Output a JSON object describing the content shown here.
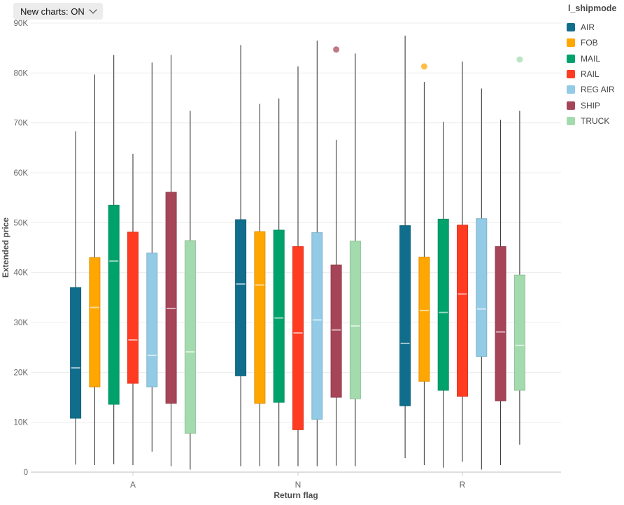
{
  "controls": {
    "new_charts_label": "New charts: ON"
  },
  "legend": {
    "title": "l_shipmode",
    "items": [
      {
        "label": "AIR",
        "color": "#116d8c"
      },
      {
        "label": "FOB",
        "color": "#ffa600"
      },
      {
        "label": "MAIL",
        "color": "#00a26b"
      },
      {
        "label": "RAIL",
        "color": "#ff3b22"
      },
      {
        "label": "REG AIR",
        "color": "#93cbe6"
      },
      {
        "label": "SHIP",
        "color": "#a64458"
      },
      {
        "label": "TRUCK",
        "color": "#a4dbae"
      }
    ]
  },
  "chart_data": {
    "type": "boxplot",
    "title": "",
    "xlabel": "Return flag",
    "ylabel": "Extended price",
    "value_unit": "K (thousands)",
    "categories": [
      "A",
      "N",
      "R"
    ],
    "yticks": [
      "0",
      "10K",
      "20K",
      "30K",
      "40K",
      "50K",
      "60K",
      "70K",
      "80K",
      "90K"
    ],
    "ylim": [
      0,
      90
    ],
    "grid": "horizontal",
    "legend_position": "top-right",
    "series": [
      {
        "name": "AIR",
        "color": "#116d8c",
        "boxes": {
          "A": {
            "low": 1.5,
            "q1": 10.8,
            "median": 20.9,
            "q3": 37.0,
            "high": 68.3
          },
          "N": {
            "low": 1.2,
            "q1": 19.3,
            "median": 37.7,
            "q3": 50.6,
            "high": 85.6
          },
          "R": {
            "low": 2.8,
            "q1": 13.3,
            "median": 25.8,
            "q3": 49.4,
            "high": 87.5
          }
        },
        "outliers": []
      },
      {
        "name": "FOB",
        "color": "#ffa600",
        "boxes": {
          "A": {
            "low": 1.4,
            "q1": 17.1,
            "median": 33.0,
            "q3": 43.0,
            "high": 79.7
          },
          "N": {
            "low": 1.2,
            "q1": 13.8,
            "median": 37.5,
            "q3": 48.2,
            "high": 73.8
          },
          "R": {
            "low": 1.4,
            "q1": 18.2,
            "median": 32.4,
            "q3": 43.1,
            "high": 78.2
          }
        },
        "outliers": [
          {
            "category": "R",
            "value": 81.3
          }
        ]
      },
      {
        "name": "MAIL",
        "color": "#00a26b",
        "boxes": {
          "A": {
            "low": 1.6,
            "q1": 13.6,
            "median": 42.3,
            "q3": 53.5,
            "high": 83.6
          },
          "N": {
            "low": 1.2,
            "q1": 14.0,
            "median": 30.9,
            "q3": 48.5,
            "high": 74.9
          },
          "R": {
            "low": 0.9,
            "q1": 16.4,
            "median": 32.0,
            "q3": 50.7,
            "high": 70.2
          }
        },
        "outliers": []
      },
      {
        "name": "RAIL",
        "color": "#ff3b22",
        "boxes": {
          "A": {
            "low": 1.4,
            "q1": 17.8,
            "median": 26.5,
            "q3": 48.1,
            "high": 63.8
          },
          "N": {
            "low": 1.2,
            "q1": 8.5,
            "median": 27.9,
            "q3": 45.2,
            "high": 81.3
          },
          "R": {
            "low": 2.1,
            "q1": 15.2,
            "median": 35.7,
            "q3": 49.5,
            "high": 82.3
          }
        },
        "outliers": []
      },
      {
        "name": "REG AIR",
        "color": "#93cbe6",
        "boxes": {
          "A": {
            "low": 4.1,
            "q1": 17.1,
            "median": 23.4,
            "q3": 43.9,
            "high": 82.1
          },
          "N": {
            "low": 1.2,
            "q1": 10.6,
            "median": 30.5,
            "q3": 48.0,
            "high": 86.5
          },
          "R": {
            "low": 0.5,
            "q1": 23.2,
            "median": 32.7,
            "q3": 50.8,
            "high": 76.9
          }
        },
        "outliers": []
      },
      {
        "name": "SHIP",
        "color": "#a64458",
        "boxes": {
          "A": {
            "low": 1.2,
            "q1": 13.8,
            "median": 32.8,
            "q3": 56.1,
            "high": 83.6
          },
          "N": {
            "low": 1.3,
            "q1": 15.0,
            "median": 28.5,
            "q3": 41.5,
            "high": 66.6
          },
          "R": {
            "low": 1.4,
            "q1": 14.3,
            "median": 28.1,
            "q3": 45.2,
            "high": 70.6
          }
        },
        "outliers": [
          {
            "category": "N",
            "value": 84.7
          }
        ]
      },
      {
        "name": "TRUCK",
        "color": "#a4dbae",
        "boxes": {
          "A": {
            "low": 0.5,
            "q1": 7.8,
            "median": 24.1,
            "q3": 46.4,
            "high": 72.4
          },
          "N": {
            "low": 1.2,
            "q1": 14.7,
            "median": 29.3,
            "q3": 46.3,
            "high": 83.9
          },
          "R": {
            "low": 5.5,
            "q1": 16.4,
            "median": 25.4,
            "q3": 39.5,
            "high": 72.4
          }
        },
        "outliers": [
          {
            "category": "R",
            "value": 82.7
          }
        ]
      }
    ]
  }
}
